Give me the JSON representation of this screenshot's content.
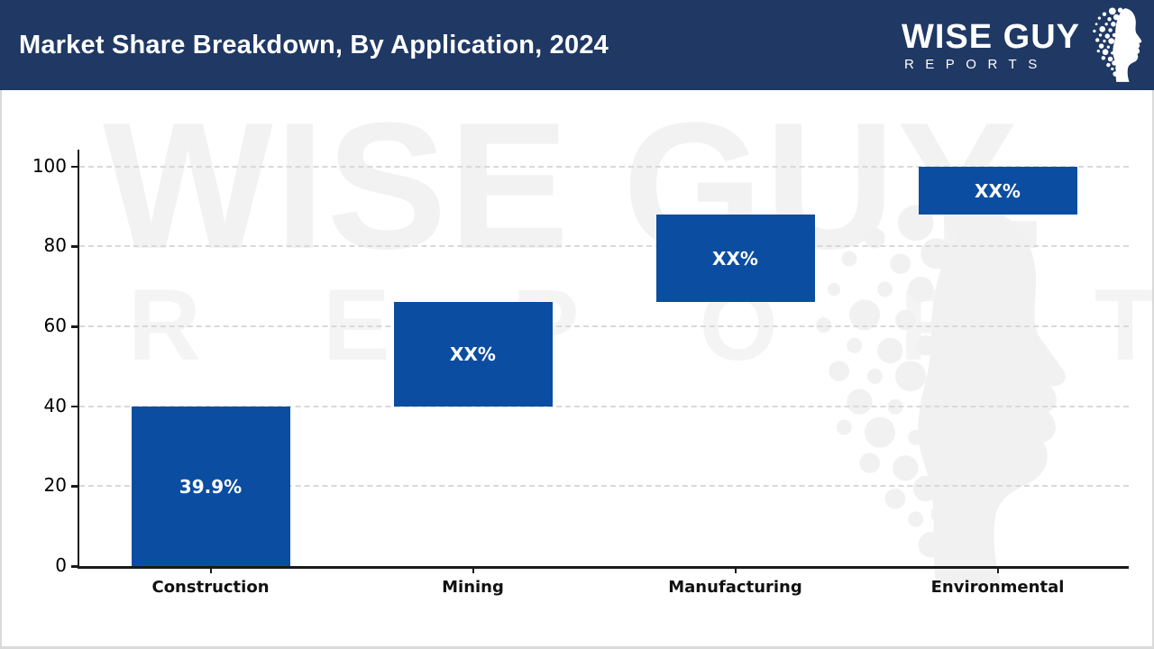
{
  "header": {
    "bg": "#1f3864",
    "title": "Market Share Breakdown, By Application, 2024",
    "logo": {
      "line1": "WISE GUY",
      "line2": "REPORTS"
    }
  },
  "watermark": {
    "line1": "WISE GUY.",
    "line2": "R E P O R T S"
  },
  "chart_data": {
    "type": "bar",
    "subtype": "waterfall-floating-bars",
    "title": "Market Share Breakdown, By Application, 2024",
    "units": "percent market share",
    "categories": [
      "Construction",
      "Mining",
      "Manufacturing",
      "Environmental"
    ],
    "segments": [
      {
        "category": "Construction",
        "start": 0,
        "end": 39.9,
        "label": "39.9%"
      },
      {
        "category": "Mining",
        "start": 39.9,
        "end": 66.1,
        "label": "XX%"
      },
      {
        "category": "Manufacturing",
        "start": 66.1,
        "end": 87.9,
        "label": "XX%"
      },
      {
        "category": "Environmental",
        "start": 87.9,
        "end": 100,
        "label": "XX%"
      }
    ],
    "yticks": [
      0,
      20,
      40,
      60,
      80,
      100
    ],
    "ylim": [
      0,
      103.8
    ],
    "xlabel": "",
    "ylabel": "",
    "grid": "horizontal-dashed",
    "legend": "none",
    "bar_color": "#0b4da1",
    "bar_label_color": "#ffffff",
    "axis_color": "#1a1a1a",
    "gridline_color": "#d9d9d9",
    "background_color": "#ffffff"
  }
}
